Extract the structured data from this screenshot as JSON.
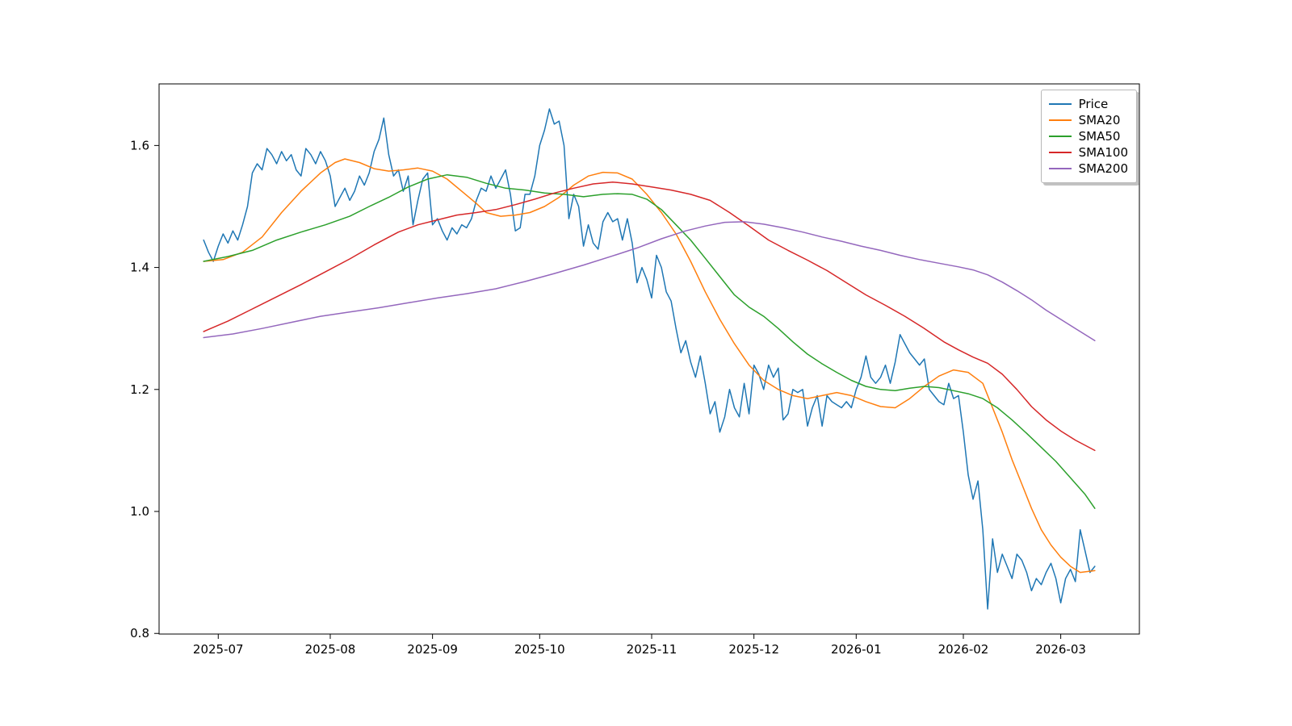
{
  "figure": {
    "background": "#ffffff",
    "axes_color": "#000000",
    "tick_label_color": "#000000"
  },
  "chart_data": {
    "type": "line",
    "title": "",
    "xlabel": "",
    "ylabel": "",
    "grid": false,
    "legend": {
      "position": "upper right",
      "entries": [
        "Price",
        "SMA20",
        "SMA50",
        "SMA100",
        "SMA200"
      ]
    },
    "x_tick_labels": [
      "2025-07",
      "2025-08",
      "2025-09",
      "2025-10",
      "2025-11",
      "2025-12",
      "2026-01",
      "2026-02",
      "2026-03"
    ],
    "x_tick_positions": [
      3,
      26,
      47,
      69,
      92,
      113,
      134,
      156,
      176
    ],
    "y_ticks": [
      0.8,
      1.0,
      1.2,
      1.4,
      1.6
    ],
    "x_range": [
      -9.15,
      192.15
    ],
    "y_range": [
      0.799,
      1.701
    ],
    "series": [
      {
        "name": "Price",
        "color": "#1f77b4",
        "x_start": 0,
        "values": [
          1.445,
          1.425,
          1.41,
          1.435,
          1.455,
          1.44,
          1.46,
          1.445,
          1.47,
          1.5,
          1.555,
          1.57,
          1.56,
          1.595,
          1.585,
          1.57,
          1.59,
          1.575,
          1.585,
          1.56,
          1.55,
          1.595,
          1.585,
          1.57,
          1.59,
          1.575,
          1.55,
          1.5,
          1.515,
          1.53,
          1.51,
          1.525,
          1.55,
          1.535,
          1.555,
          1.59,
          1.61,
          1.645,
          1.585,
          1.55,
          1.56,
          1.525,
          1.55,
          1.47,
          1.51,
          1.545,
          1.555,
          1.47,
          1.48,
          1.46,
          1.445,
          1.465,
          1.455,
          1.47,
          1.465,
          1.48,
          1.51,
          1.53,
          1.525,
          1.55,
          1.53,
          1.545,
          1.56,
          1.52,
          1.46,
          1.465,
          1.52,
          1.52,
          1.55,
          1.6,
          1.625,
          1.66,
          1.635,
          1.64,
          1.6,
          1.48,
          1.52,
          1.5,
          1.435,
          1.47,
          1.44,
          1.43,
          1.475,
          1.49,
          1.475,
          1.48,
          1.445,
          1.48,
          1.44,
          1.375,
          1.4,
          1.38,
          1.35,
          1.42,
          1.4,
          1.36,
          1.345,
          1.3,
          1.26,
          1.28,
          1.245,
          1.22,
          1.255,
          1.21,
          1.16,
          1.18,
          1.13,
          1.155,
          1.2,
          1.17,
          1.155,
          1.21,
          1.16,
          1.24,
          1.225,
          1.2,
          1.24,
          1.22,
          1.235,
          1.15,
          1.16,
          1.2,
          1.195,
          1.2,
          1.14,
          1.17,
          1.19,
          1.14,
          1.19,
          1.18,
          1.175,
          1.17,
          1.18,
          1.17,
          1.2,
          1.22,
          1.255,
          1.22,
          1.21,
          1.22,
          1.24,
          1.21,
          1.245,
          1.29,
          1.275,
          1.26,
          1.25,
          1.24,
          1.25,
          1.2,
          1.19,
          1.18,
          1.175,
          1.21,
          1.185,
          1.19,
          1.13,
          1.06,
          1.02,
          1.05,
          0.97,
          0.84,
          0.955,
          0.9,
          0.93,
          0.91,
          0.89,
          0.93,
          0.92,
          0.9,
          0.87,
          0.89,
          0.88,
          0.9,
          0.915,
          0.89,
          0.85,
          0.89,
          0.905,
          0.885,
          0.97,
          0.935,
          0.9,
          0.91
        ]
      },
      {
        "name": "SMA20",
        "color": "#ff7f0e",
        "points": [
          [
            0,
            1.41
          ],
          [
            4,
            1.413
          ],
          [
            8,
            1.425
          ],
          [
            12,
            1.45
          ],
          [
            16,
            1.49
          ],
          [
            20,
            1.525
          ],
          [
            24,
            1.555
          ],
          [
            27,
            1.572
          ],
          [
            29,
            1.578
          ],
          [
            32,
            1.572
          ],
          [
            35,
            1.562
          ],
          [
            38,
            1.558
          ],
          [
            41,
            1.56
          ],
          [
            44,
            1.563
          ],
          [
            47,
            1.558
          ],
          [
            50,
            1.545
          ],
          [
            53,
            1.525
          ],
          [
            56,
            1.505
          ],
          [
            58,
            1.49
          ],
          [
            61,
            1.484
          ],
          [
            64,
            1.486
          ],
          [
            67,
            1.49
          ],
          [
            70,
            1.5
          ],
          [
            73,
            1.515
          ],
          [
            76,
            1.535
          ],
          [
            79,
            1.55
          ],
          [
            82,
            1.556
          ],
          [
            85,
            1.555
          ],
          [
            88,
            1.545
          ],
          [
            91,
            1.52
          ],
          [
            94,
            1.49
          ],
          [
            97,
            1.455
          ],
          [
            100,
            1.41
          ],
          [
            103,
            1.36
          ],
          [
            106,
            1.315
          ],
          [
            109,
            1.275
          ],
          [
            112,
            1.24
          ],
          [
            115,
            1.215
          ],
          [
            118,
            1.2
          ],
          [
            121,
            1.19
          ],
          [
            124,
            1.185
          ],
          [
            127,
            1.19
          ],
          [
            130,
            1.195
          ],
          [
            133,
            1.19
          ],
          [
            136,
            1.18
          ],
          [
            139,
            1.172
          ],
          [
            142,
            1.17
          ],
          [
            145,
            1.185
          ],
          [
            148,
            1.205
          ],
          [
            151,
            1.222
          ],
          [
            154,
            1.232
          ],
          [
            157,
            1.228
          ],
          [
            160,
            1.21
          ],
          [
            162,
            1.17
          ],
          [
            164,
            1.13
          ],
          [
            166,
            1.085
          ],
          [
            168,
            1.045
          ],
          [
            170,
            1.005
          ],
          [
            172,
            0.97
          ],
          [
            174,
            0.945
          ],
          [
            176,
            0.925
          ],
          [
            178,
            0.91
          ],
          [
            180,
            0.9
          ],
          [
            183,
            0.903
          ]
        ]
      },
      {
        "name": "SMA50",
        "color": "#2ca02c",
        "points": [
          [
            0,
            1.41
          ],
          [
            5,
            1.418
          ],
          [
            10,
            1.428
          ],
          [
            15,
            1.445
          ],
          [
            20,
            1.458
          ],
          [
            25,
            1.47
          ],
          [
            30,
            1.484
          ],
          [
            34,
            1.5
          ],
          [
            38,
            1.515
          ],
          [
            42,
            1.532
          ],
          [
            46,
            1.545
          ],
          [
            50,
            1.552
          ],
          [
            54,
            1.548
          ],
          [
            58,
            1.538
          ],
          [
            62,
            1.53
          ],
          [
            66,
            1.527
          ],
          [
            70,
            1.522
          ],
          [
            74,
            1.52
          ],
          [
            78,
            1.516
          ],
          [
            82,
            1.52
          ],
          [
            85,
            1.521
          ],
          [
            88,
            1.52
          ],
          [
            91,
            1.512
          ],
          [
            94,
            1.495
          ],
          [
            97,
            1.47
          ],
          [
            100,
            1.445
          ],
          [
            103,
            1.415
          ],
          [
            106,
            1.385
          ],
          [
            109,
            1.355
          ],
          [
            112,
            1.335
          ],
          [
            115,
            1.32
          ],
          [
            118,
            1.3
          ],
          [
            121,
            1.278
          ],
          [
            124,
            1.258
          ],
          [
            127,
            1.242
          ],
          [
            130,
            1.228
          ],
          [
            133,
            1.215
          ],
          [
            136,
            1.205
          ],
          [
            139,
            1.2
          ],
          [
            142,
            1.198
          ],
          [
            145,
            1.202
          ],
          [
            148,
            1.205
          ],
          [
            151,
            1.203
          ],
          [
            154,
            1.198
          ],
          [
            157,
            1.193
          ],
          [
            160,
            1.185
          ],
          [
            163,
            1.17
          ],
          [
            166,
            1.15
          ],
          [
            169,
            1.128
          ],
          [
            172,
            1.105
          ],
          [
            175,
            1.082
          ],
          [
            178,
            1.055
          ],
          [
            181,
            1.028
          ],
          [
            183,
            1.005
          ]
        ]
      },
      {
        "name": "SMA100",
        "color": "#d62728",
        "points": [
          [
            0,
            1.295
          ],
          [
            5,
            1.312
          ],
          [
            10,
            1.332
          ],
          [
            15,
            1.352
          ],
          [
            20,
            1.372
          ],
          [
            25,
            1.393
          ],
          [
            30,
            1.414
          ],
          [
            35,
            1.437
          ],
          [
            40,
            1.458
          ],
          [
            44,
            1.47
          ],
          [
            48,
            1.478
          ],
          [
            52,
            1.486
          ],
          [
            56,
            1.49
          ],
          [
            60,
            1.495
          ],
          [
            64,
            1.503
          ],
          [
            68,
            1.512
          ],
          [
            72,
            1.522
          ],
          [
            76,
            1.53
          ],
          [
            80,
            1.537
          ],
          [
            84,
            1.54
          ],
          [
            88,
            1.537
          ],
          [
            92,
            1.532
          ],
          [
            96,
            1.527
          ],
          [
            100,
            1.52
          ],
          [
            104,
            1.51
          ],
          [
            108,
            1.49
          ],
          [
            112,
            1.468
          ],
          [
            116,
            1.445
          ],
          [
            120,
            1.428
          ],
          [
            124,
            1.412
          ],
          [
            128,
            1.395
          ],
          [
            132,
            1.375
          ],
          [
            136,
            1.355
          ],
          [
            140,
            1.338
          ],
          [
            144,
            1.32
          ],
          [
            148,
            1.3
          ],
          [
            152,
            1.278
          ],
          [
            155,
            1.265
          ],
          [
            158,
            1.253
          ],
          [
            161,
            1.243
          ],
          [
            164,
            1.225
          ],
          [
            167,
            1.2
          ],
          [
            170,
            1.172
          ],
          [
            173,
            1.15
          ],
          [
            176,
            1.132
          ],
          [
            179,
            1.117
          ],
          [
            183,
            1.1
          ]
        ]
      },
      {
        "name": "SMA200",
        "color": "#9467bd",
        "points": [
          [
            0,
            1.285
          ],
          [
            6,
            1.291
          ],
          [
            12,
            1.3
          ],
          [
            18,
            1.31
          ],
          [
            24,
            1.32
          ],
          [
            30,
            1.327
          ],
          [
            36,
            1.334
          ],
          [
            42,
            1.342
          ],
          [
            48,
            1.35
          ],
          [
            54,
            1.357
          ],
          [
            60,
            1.365
          ],
          [
            66,
            1.377
          ],
          [
            72,
            1.39
          ],
          [
            78,
            1.404
          ],
          [
            84,
            1.419
          ],
          [
            89,
            1.432
          ],
          [
            94,
            1.447
          ],
          [
            99,
            1.46
          ],
          [
            103,
            1.468
          ],
          [
            107,
            1.474
          ],
          [
            111,
            1.475
          ],
          [
            115,
            1.471
          ],
          [
            119,
            1.465
          ],
          [
            123,
            1.458
          ],
          [
            127,
            1.45
          ],
          [
            131,
            1.443
          ],
          [
            135,
            1.435
          ],
          [
            139,
            1.428
          ],
          [
            143,
            1.42
          ],
          [
            147,
            1.413
          ],
          [
            151,
            1.407
          ],
          [
            155,
            1.401
          ],
          [
            158,
            1.396
          ],
          [
            161,
            1.388
          ],
          [
            164,
            1.376
          ],
          [
            167,
            1.362
          ],
          [
            170,
            1.347
          ],
          [
            173,
            1.33
          ],
          [
            176,
            1.315
          ],
          [
            179,
            1.3
          ],
          [
            183,
            1.28
          ]
        ]
      }
    ]
  }
}
